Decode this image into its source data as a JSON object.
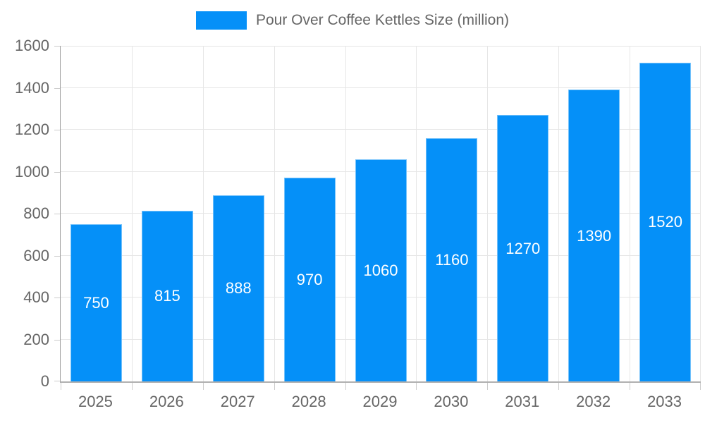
{
  "legend": {
    "label": "Pour Over Coffee Kettles Size (million)",
    "position": "top-center"
  },
  "chart_data": {
    "type": "bar",
    "title": "Pour Over Coffee Kettles Size (million)",
    "categories": [
      "2025",
      "2026",
      "2027",
      "2028",
      "2029",
      "2030",
      "2031",
      "2032",
      "2033"
    ],
    "values": [
      750,
      815,
      888,
      970,
      1060,
      1160,
      1270,
      1390,
      1520
    ],
    "series": [
      {
        "name": "Pour Over Coffee Kettles Size (million)",
        "values": [
          750,
          815,
          888,
          970,
          1060,
          1160,
          1270,
          1390,
          1520
        ]
      }
    ],
    "xlabel": "",
    "ylabel": "",
    "ylim": [
      0,
      1600
    ],
    "yticks": [
      0,
      200,
      400,
      600,
      800,
      1000,
      1200,
      1400,
      1600
    ],
    "grid": true,
    "legend_position": "top-center",
    "bar_color": "#0590f8",
    "value_label_color": "#ffffff",
    "axis_text_color": "#666666"
  }
}
